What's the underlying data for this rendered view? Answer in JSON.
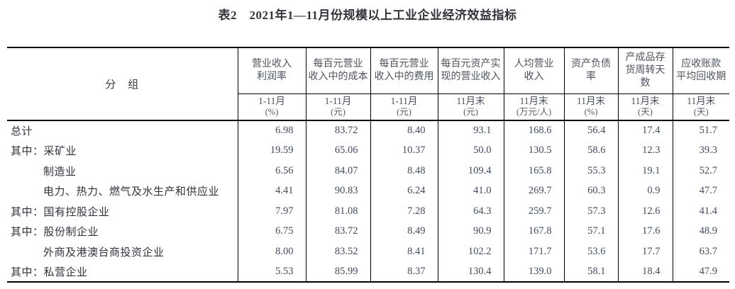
{
  "title": "表2　2021年1—11月份规模以上工业企业经济效益指标",
  "table": {
    "group_header": "分　组",
    "columns": [
      {
        "name": "营业收入\n利润率",
        "period": "1-11月",
        "unit": "(%)"
      },
      {
        "name": "每百元营业\n收入中的成本",
        "period": "1-11月",
        "unit": "(元)"
      },
      {
        "name": "每百元营业\n收入中的费用",
        "period": "1-11月",
        "unit": "(元)"
      },
      {
        "name": "每百元资产实\n现的营业收入",
        "period": "11月末",
        "unit": "(元)"
      },
      {
        "name": "人均营业\n收入",
        "period": "11月末",
        "unit": "(万元/人)"
      },
      {
        "name": "资产负债\n率",
        "period": "11月末",
        "unit": "(%)"
      },
      {
        "name": "产成品存\n货周转天\n数",
        "period": "11月末",
        "unit": "(天)"
      },
      {
        "name": "应收账款\n平均回收期",
        "period": "11月末",
        "unit": "(天)"
      }
    ],
    "rows": [
      {
        "prefix": "",
        "label": "总计",
        "indent": false,
        "values": [
          "6.98",
          "83.72",
          "8.40",
          "93.1",
          "168.6",
          "56.4",
          "17.4",
          "51.7"
        ]
      },
      {
        "prefix": "其中：",
        "label": "采矿业",
        "indent": false,
        "values": [
          "19.59",
          "65.06",
          "10.37",
          "50.0",
          "130.5",
          "58.6",
          "12.3",
          "39.3"
        ]
      },
      {
        "prefix": "",
        "label": "制造业",
        "indent": true,
        "values": [
          "6.56",
          "84.07",
          "8.48",
          "109.4",
          "165.8",
          "55.3",
          "19.1",
          "52.7"
        ]
      },
      {
        "prefix": "",
        "label": "电力、热力、燃气及水生产和供应业",
        "indent": true,
        "values": [
          "4.41",
          "90.83",
          "6.24",
          "41.0",
          "269.7",
          "60.3",
          "0.9",
          "47.7"
        ]
      },
      {
        "prefix": "其中：",
        "label": "国有控股企业",
        "indent": false,
        "values": [
          "7.97",
          "81.08",
          "7.28",
          "64.3",
          "259.7",
          "57.3",
          "12.6",
          "41.4"
        ]
      },
      {
        "prefix": "其中：",
        "label": "股份制企业",
        "indent": false,
        "values": [
          "6.75",
          "83.72",
          "8.49",
          "90.9",
          "167.8",
          "57.1",
          "17.6",
          "48.9"
        ]
      },
      {
        "prefix": "",
        "label": "外商及港澳台商投资企业",
        "indent": true,
        "values": [
          "8.00",
          "83.52",
          "8.41",
          "102.2",
          "171.7",
          "53.6",
          "17.7",
          "63.7"
        ]
      },
      {
        "prefix": "其中：",
        "label": "私营企业",
        "indent": false,
        "values": [
          "5.53",
          "85.99",
          "8.37",
          "130.4",
          "139.0",
          "58.1",
          "18.4",
          "47.9"
        ]
      }
    ]
  }
}
